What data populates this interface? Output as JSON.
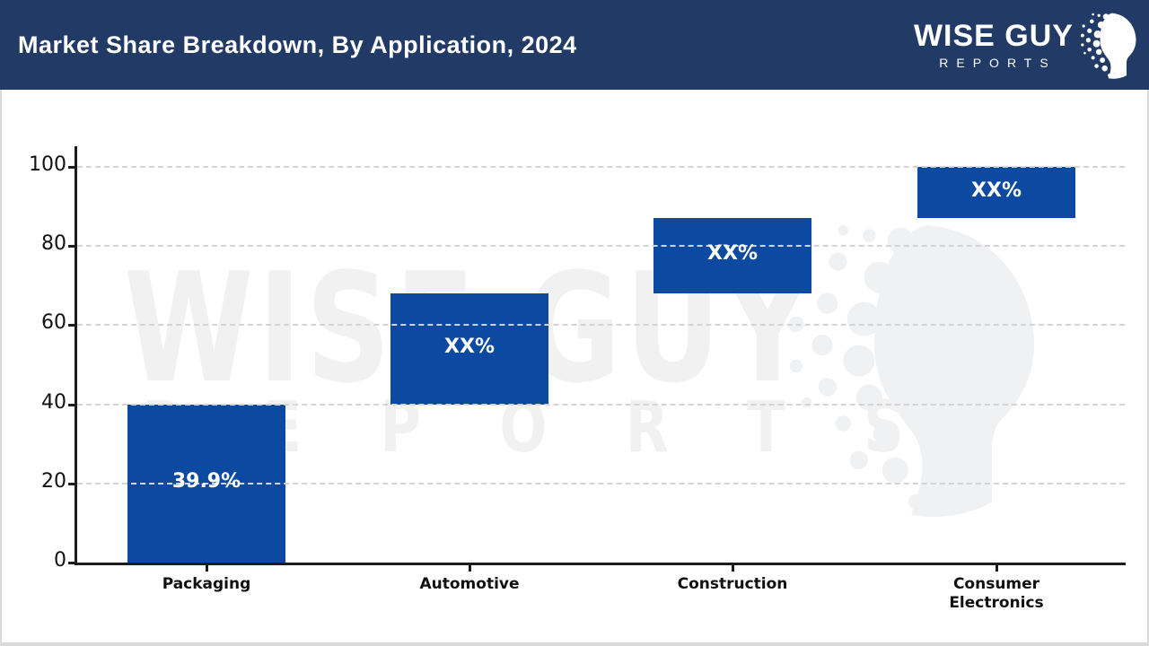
{
  "header": {
    "title": "Market Share Breakdown, By Application, 2024",
    "logo": {
      "line1": "WISE GUY",
      "line2": "REPORTS"
    }
  },
  "watermark": {
    "line1": "WISE GUY",
    "line2": "R E P O R T S"
  },
  "chart_data": {
    "type": "bar",
    "subtype": "waterfall",
    "title": "Market Share Breakdown, By Application, 2024",
    "categories": [
      "Packaging",
      "Automotive",
      "Construction",
      "Consumer Electronics"
    ],
    "segments": [
      {
        "category": "Packaging",
        "start": 0,
        "end": 39.9,
        "label": "39.9%"
      },
      {
        "category": "Automotive",
        "start": 39.9,
        "end": 68,
        "label": "XX%"
      },
      {
        "category": "Construction",
        "start": 68,
        "end": 87,
        "label": "XX%"
      },
      {
        "category": "Consumer Electronics",
        "start": 87,
        "end": 100,
        "label": "XX%"
      }
    ],
    "y_ticks": [
      0,
      20,
      40,
      60,
      80,
      100
    ],
    "ylim": [
      0,
      105
    ],
    "xlabel": "",
    "ylabel": "",
    "grid": "horizontal-dashed",
    "legend": "none"
  },
  "colors": {
    "header_bg": "#223a66",
    "header_text": "#ffffff",
    "bar": "#0c4aa2",
    "bar_label": "#ffffff",
    "grid": "#d4d4d4",
    "axis": "#1c1c1c",
    "watermark": "#f1f1f2"
  }
}
